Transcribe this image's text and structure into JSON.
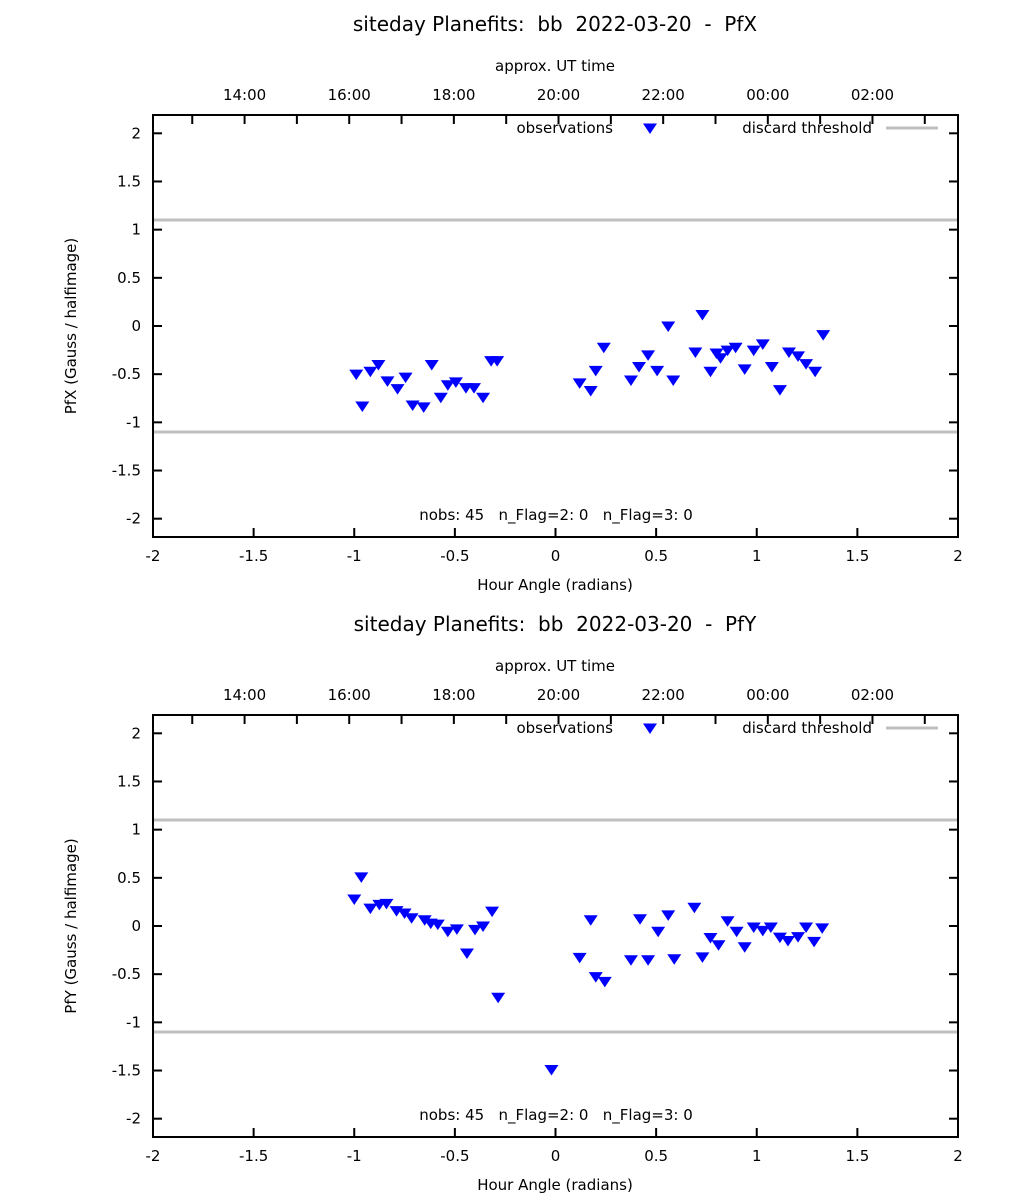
{
  "page": {
    "background": "#ffffff"
  },
  "colors": {
    "points": "#0000ff",
    "threshold_line": "#c0c0c0",
    "axis": "#000000",
    "text": "#000000"
  },
  "chart_data": [
    {
      "type": "scatter",
      "title": "siteday Planefits:  bb  2022-03-20  -  PfX",
      "top_axis_label": "approx. UT time",
      "xlabel": "Hour Angle (radians)",
      "ylabel": "PfX (Gauss / halfimage)",
      "xlim": [
        -2,
        2
      ],
      "ylim": [
        -2.19,
        2.19
      ],
      "grid": false,
      "x_tick_values": [
        -2,
        -1.5,
        -1,
        -0.5,
        0,
        0.5,
        1,
        1.5,
        2
      ],
      "x_tick_labels": [
        "-2",
        "-1.5",
        "-1",
        "-0.5",
        "0",
        "0.5",
        "1",
        "1.5",
        "2"
      ],
      "y_tick_values": [
        -2,
        -1.5,
        -1,
        -0.5,
        0,
        0.5,
        1,
        1.5,
        2
      ],
      "y_tick_labels": [
        "-2",
        "-1.5",
        "-1",
        "-0.5",
        "0",
        "0.5",
        "1",
        "1.5",
        "2"
      ],
      "ut_time_ticks": {
        "labels": [
          "14:00",
          "16:00",
          "18:00",
          "20:00",
          "22:00",
          "00:00",
          "02:00"
        ],
        "x_values": [
          -1.545,
          -1.025,
          -0.505,
          0.015,
          0.535,
          1.055,
          1.575
        ],
        "minor_x_values": [
          -1.805,
          -1.285,
          -0.765,
          -0.245,
          0.275,
          0.795,
          1.315,
          1.835
        ]
      },
      "discard_threshold": 1.1,
      "legend": {
        "observations_label": "observations",
        "threshold_label": "discard threshold",
        "position": "top-right-inside"
      },
      "stats_label": "nobs: 45   n_Flag=2: 0   n_Flag=3: 0",
      "marker": "triangle-down",
      "points": [
        [
          -0.99,
          -0.5
        ],
        [
          -0.96,
          -0.83
        ],
        [
          -0.92,
          -0.47
        ],
        [
          -0.88,
          -0.4
        ],
        [
          -0.835,
          -0.57
        ],
        [
          -0.785,
          -0.65
        ],
        [
          -0.745,
          -0.53
        ],
        [
          -0.71,
          -0.82
        ],
        [
          -0.655,
          -0.84
        ],
        [
          -0.615,
          -0.4
        ],
        [
          -0.57,
          -0.74
        ],
        [
          -0.535,
          -0.61
        ],
        [
          -0.495,
          -0.58
        ],
        [
          -0.445,
          -0.64
        ],
        [
          -0.405,
          -0.64
        ],
        [
          -0.36,
          -0.74
        ],
        [
          -0.32,
          -0.36
        ],
        [
          -0.29,
          -0.36
        ],
        [
          0.12,
          -0.59
        ],
        [
          0.175,
          -0.67
        ],
        [
          0.2,
          -0.46
        ],
        [
          0.24,
          -0.22
        ],
        [
          0.375,
          -0.56
        ],
        [
          0.415,
          -0.42
        ],
        [
          0.46,
          -0.3
        ],
        [
          0.505,
          -0.46
        ],
        [
          0.56,
          0.0
        ],
        [
          0.585,
          -0.56
        ],
        [
          0.695,
          -0.27
        ],
        [
          0.73,
          0.12
        ],
        [
          0.77,
          -0.47
        ],
        [
          0.8,
          -0.28
        ],
        [
          0.82,
          -0.33
        ],
        [
          0.855,
          -0.25
        ],
        [
          0.895,
          -0.22
        ],
        [
          0.94,
          -0.445
        ],
        [
          0.985,
          -0.25
        ],
        [
          1.03,
          -0.185
        ],
        [
          1.075,
          -0.42
        ],
        [
          1.115,
          -0.66
        ],
        [
          1.16,
          -0.27
        ],
        [
          1.205,
          -0.31
        ],
        [
          1.245,
          -0.39
        ],
        [
          1.29,
          -0.47
        ],
        [
          1.33,
          -0.09
        ]
      ]
    },
    {
      "type": "scatter",
      "title": "siteday Planefits:  bb  2022-03-20  -  PfY",
      "top_axis_label": "approx. UT time",
      "xlabel": "Hour Angle (radians)",
      "ylabel": "PfY (Gauss / halfimage)",
      "xlim": [
        -2,
        2
      ],
      "ylim": [
        -2.19,
        2.19
      ],
      "grid": false,
      "x_tick_values": [
        -2,
        -1.5,
        -1,
        -0.5,
        0,
        0.5,
        1,
        1.5,
        2
      ],
      "x_tick_labels": [
        "-2",
        "-1.5",
        "-1",
        "-0.5",
        "0",
        "0.5",
        "1",
        "1.5",
        "2"
      ],
      "y_tick_values": [
        -2,
        -1.5,
        -1,
        -0.5,
        0,
        0.5,
        1,
        1.5,
        2
      ],
      "y_tick_labels": [
        "-2",
        "-1.5",
        "-1",
        "-0.5",
        "0",
        "0.5",
        "1",
        "1.5",
        "2"
      ],
      "ut_time_ticks": {
        "labels": [
          "14:00",
          "16:00",
          "18:00",
          "20:00",
          "22:00",
          "00:00",
          "02:00"
        ],
        "x_values": [
          -1.545,
          -1.025,
          -0.505,
          0.015,
          0.535,
          1.055,
          1.575
        ],
        "minor_x_values": [
          -1.805,
          -1.285,
          -0.765,
          -0.245,
          0.275,
          0.795,
          1.315,
          1.835
        ]
      },
      "discard_threshold": 1.1,
      "legend": {
        "observations_label": "observations",
        "threshold_label": "discard threshold",
        "position": "top-right-inside"
      },
      "stats_label": "nobs: 45   n_Flag=2: 0   n_Flag=3: 0",
      "marker": "triangle-down",
      "points": [
        [
          -1.0,
          0.28
        ],
        [
          -0.965,
          0.51
        ],
        [
          -0.92,
          0.185
        ],
        [
          -0.875,
          0.225
        ],
        [
          -0.84,
          0.235
        ],
        [
          -0.79,
          0.16
        ],
        [
          -0.75,
          0.135
        ],
        [
          -0.715,
          0.085
        ],
        [
          -0.65,
          0.065
        ],
        [
          -0.62,
          0.03
        ],
        [
          -0.585,
          0.02
        ],
        [
          -0.535,
          -0.055
        ],
        [
          -0.49,
          -0.03
        ],
        [
          -0.44,
          -0.28
        ],
        [
          -0.4,
          -0.035
        ],
        [
          -0.36,
          0.0
        ],
        [
          -0.315,
          0.155
        ],
        [
          -0.285,
          -0.74
        ],
        [
          -0.02,
          -1.49
        ],
        [
          0.12,
          -0.325
        ],
        [
          0.175,
          0.065
        ],
        [
          0.2,
          -0.525
        ],
        [
          0.245,
          -0.575
        ],
        [
          0.375,
          -0.35
        ],
        [
          0.42,
          0.075
        ],
        [
          0.46,
          -0.35
        ],
        [
          0.51,
          -0.055
        ],
        [
          0.56,
          0.115
        ],
        [
          0.59,
          -0.34
        ],
        [
          0.69,
          0.195
        ],
        [
          0.73,
          -0.32
        ],
        [
          0.77,
          -0.12
        ],
        [
          0.81,
          -0.195
        ],
        [
          0.855,
          0.055
        ],
        [
          0.9,
          -0.055
        ],
        [
          0.94,
          -0.215
        ],
        [
          0.985,
          -0.01
        ],
        [
          1.03,
          -0.045
        ],
        [
          1.07,
          -0.01
        ],
        [
          1.115,
          -0.115
        ],
        [
          1.155,
          -0.15
        ],
        [
          1.205,
          -0.11
        ],
        [
          1.245,
          -0.01
        ],
        [
          1.285,
          -0.16
        ],
        [
          1.325,
          -0.02
        ]
      ]
    }
  ]
}
